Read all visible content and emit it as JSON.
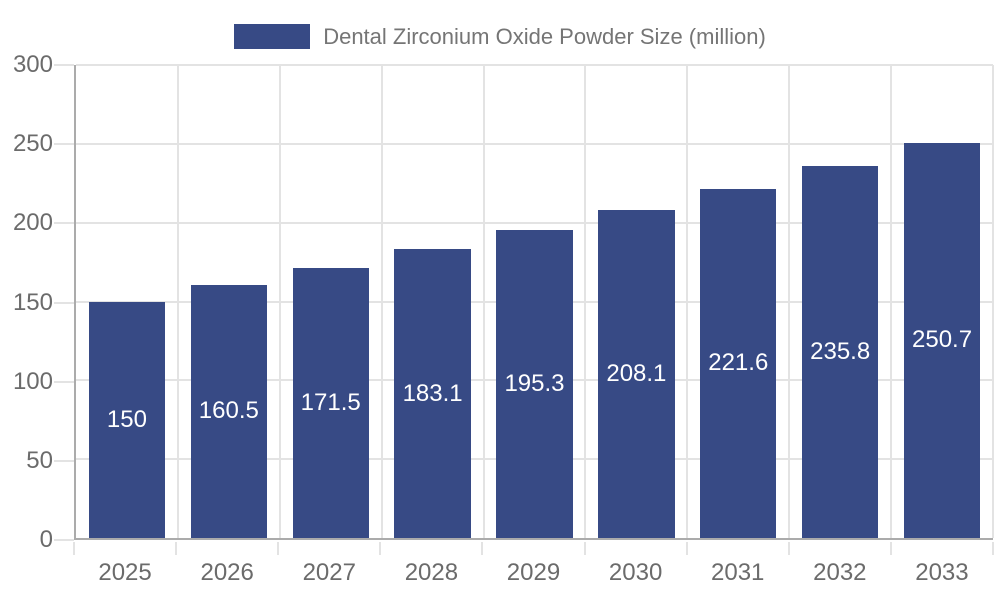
{
  "chart_data": {
    "type": "bar",
    "title": "Dental Zirconium Oxide Powder Size (million)",
    "legend": [
      "Dental Zirconium Oxide Powder Size (million)"
    ],
    "legend_position": "top-center",
    "categories": [
      "2025",
      "2026",
      "2027",
      "2028",
      "2029",
      "2030",
      "2031",
      "2032",
      "2033"
    ],
    "series": [
      {
        "name": "Dental Zirconium Oxide Powder Size (million)",
        "values": [
          150,
          160.5,
          171.5,
          183.1,
          195.3,
          208.1,
          221.6,
          235.8,
          250.7
        ],
        "value_labels": [
          "150",
          "160.5",
          "171.5",
          "183.1",
          "195.3",
          "208.1",
          "221.6",
          "235.8",
          "250.7"
        ]
      }
    ],
    "xlabel": "",
    "ylabel": "",
    "ylim": [
      0,
      300
    ],
    "yticks": [
      0,
      50,
      100,
      150,
      200,
      250,
      300
    ],
    "grid": true,
    "value_label_position": "inside-center",
    "colors": {
      "bar": "#374a85",
      "grid": "#e3e3e3",
      "axis": "#ababab",
      "tick_label": "#6b6b6b",
      "legend_text": "#757575",
      "value_label": "#ffffff",
      "background": "#ffffff"
    }
  }
}
